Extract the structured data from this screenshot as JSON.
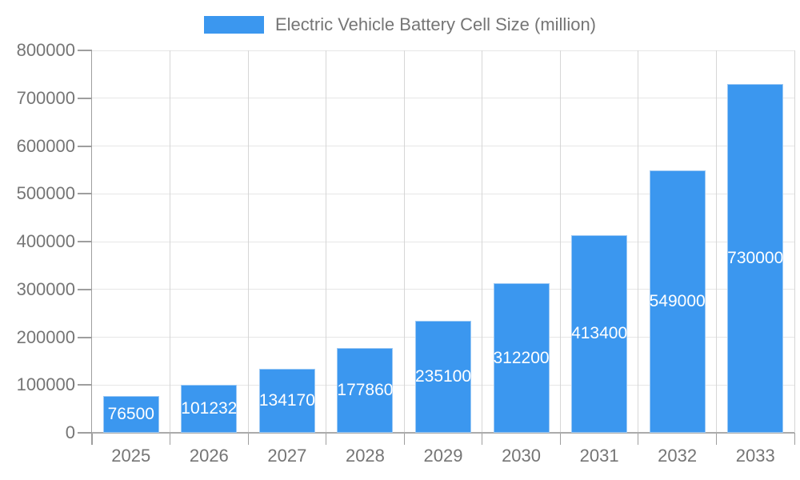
{
  "legend": {
    "label": "Electric Vehicle Battery Cell Size (million)"
  },
  "chart_data": {
    "type": "bar",
    "title": "Electric Vehicle Battery Cell Size (million)",
    "categories": [
      "2025",
      "2026",
      "2027",
      "2028",
      "2029",
      "2030",
      "2031",
      "2032",
      "2033"
    ],
    "values": [
      76500,
      101232,
      134170,
      177860,
      235100,
      312200,
      413400,
      549000,
      730000
    ],
    "xlabel": "",
    "ylabel": "",
    "ylim": [
      0,
      800000
    ],
    "ytick_values": [
      0,
      100000,
      200000,
      300000,
      400000,
      500000,
      600000,
      700000,
      800000
    ],
    "ytick_labels": [
      "0",
      "100000",
      "200000",
      "300000",
      "400000",
      "500000",
      "600000",
      "700000",
      "800000"
    ],
    "grid": true,
    "legend_position": "top",
    "bar_color": "#3b97ef",
    "bar_border_color": "#9dc9f4",
    "bar_value_label_color": "#ffffff",
    "axis_text_color": "#757575",
    "grid_h_color": "#e7e7e7",
    "grid_v_color": "#d6d6d6",
    "axis_line_color": "#9e9e9e"
  }
}
